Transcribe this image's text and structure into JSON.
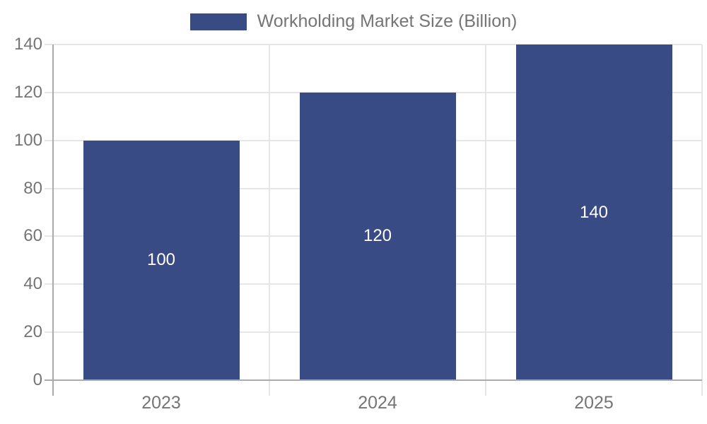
{
  "chart_data": {
    "type": "bar",
    "title": "",
    "series_name": "Workholding Market Size (Billion)",
    "categories": [
      "2023",
      "2024",
      "2025"
    ],
    "values": [
      100,
      120,
      140
    ],
    "xlabel": "",
    "ylabel": "",
    "ylim": [
      0,
      140
    ],
    "yticks": [
      0,
      20,
      40,
      60,
      80,
      100,
      120,
      140
    ],
    "grid": true,
    "legend_position": "top-center",
    "bar_color": "#394B84",
    "value_label_color": "#ffffff",
    "tick_label_color": "#757575",
    "gridline_color": "#e6e6e6",
    "axis_line_color": "#ababab"
  }
}
